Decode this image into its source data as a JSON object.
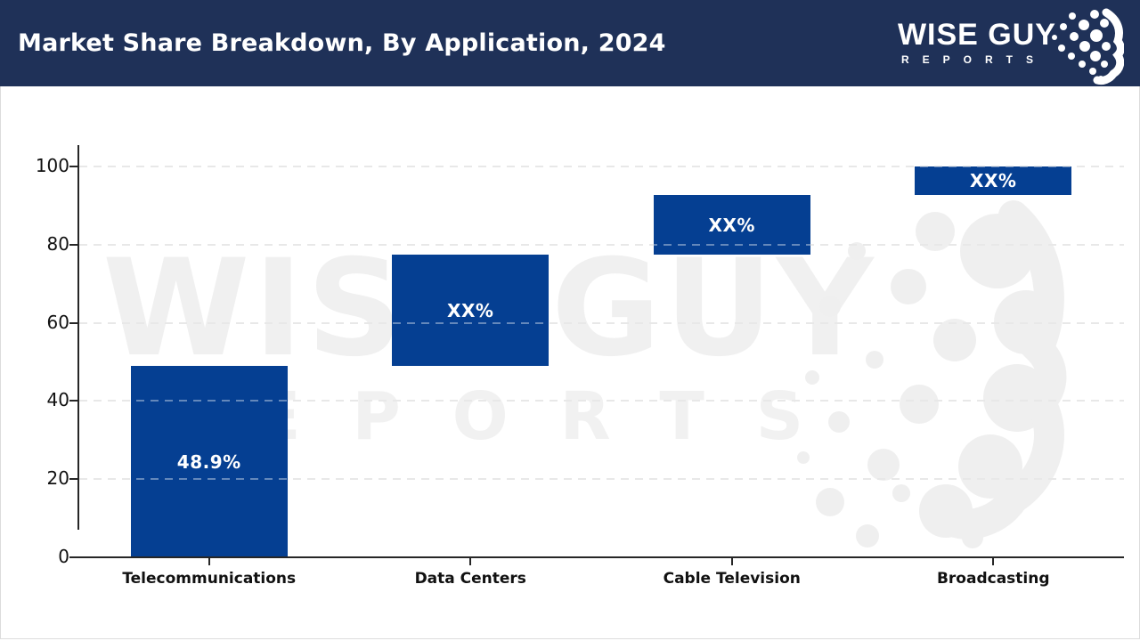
{
  "header": {
    "title": "Market Share Breakdown, By Application, 2024",
    "logo": {
      "line1": "WISE GUY",
      "line2": "REPORTS"
    }
  },
  "watermark": {
    "line1": "WISE GUY",
    "line2": "REPORTS"
  },
  "chart_data": {
    "type": "bar",
    "variant": "waterfall-stacked-percentage",
    "title": "Market Share Breakdown, By Application, 2024",
    "categories": [
      "Telecommunications",
      "Data Centers",
      "Cable Television",
      "Broadcasting"
    ],
    "segments": [
      {
        "category": "Telecommunications",
        "start": 0,
        "end": 48.9,
        "label": "48.9%"
      },
      {
        "category": "Data Centers",
        "start": 48.9,
        "end": 77.4,
        "label": "XX%"
      },
      {
        "category": "Cable Television",
        "start": 77.4,
        "end": 92.6,
        "label": "XX%"
      },
      {
        "category": "Broadcasting",
        "start": 92.6,
        "end": 100,
        "label": "XX%"
      }
    ],
    "y_ticks": [
      0,
      20,
      40,
      60,
      80,
      100
    ],
    "ylim": [
      0,
      105
    ],
    "xlabel": "",
    "ylabel": "",
    "grid": "dashed-horizontal",
    "legend": "none",
    "bar_color": "#053f92",
    "bar_label_color": "#ffffff",
    "axis_color": "#262626",
    "grid_color": "#dadada"
  },
  "colors": {
    "header_bg": "#1f3158",
    "watermark": "#f0f0f0",
    "background": "#ffffff"
  }
}
